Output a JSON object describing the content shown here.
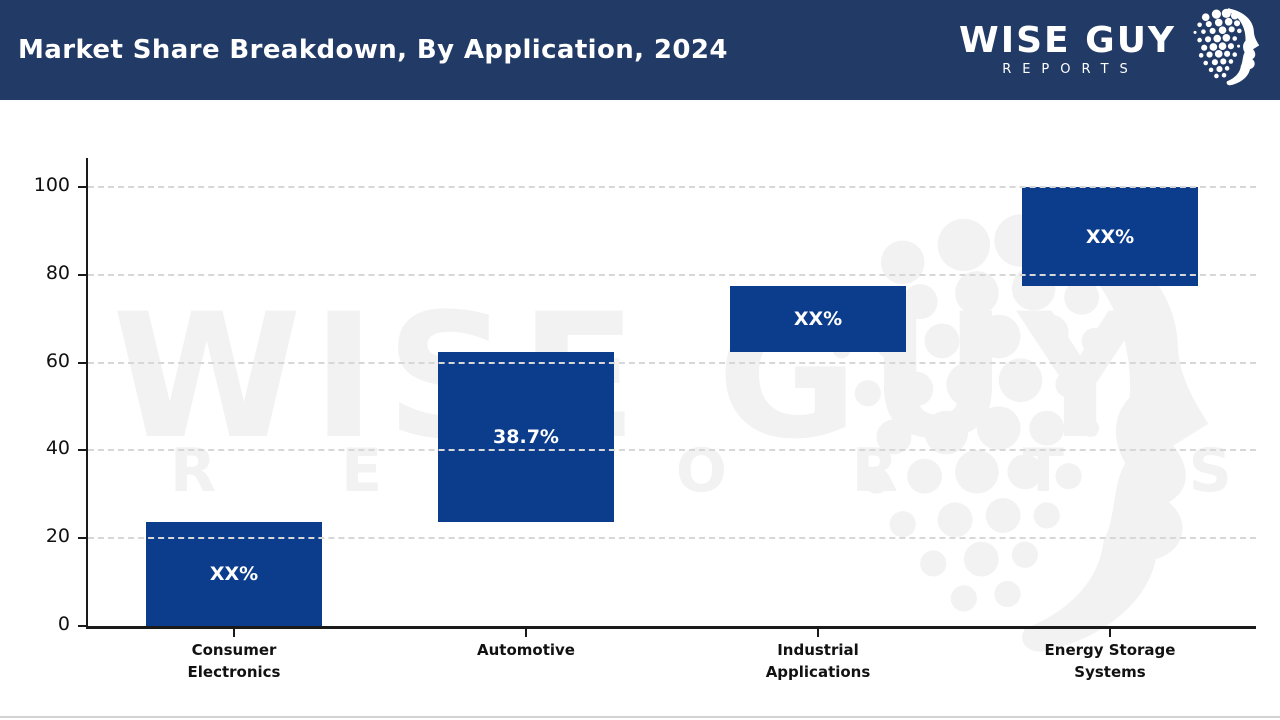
{
  "header": {
    "title": "Market Share Breakdown, By Application, 2024",
    "logo": {
      "line1": "WISE GUY",
      "line2": "REPORTS"
    }
  },
  "watermark": {
    "line1": "WISE GUY",
    "line2": "R E P O R T S"
  },
  "chart_data": {
    "type": "bar",
    "subtype": "waterfall-stacked",
    "title": "Market Share Breakdown, By Application, 2024",
    "categories": [
      "Consumer\nElectronics",
      "Automotive",
      "Industrial\nApplications",
      "Energy Storage\nSystems"
    ],
    "values": [
      23.7,
      38.7,
      15.0,
      22.6
    ],
    "cumulative_start": [
      0,
      23.7,
      62.4,
      77.4
    ],
    "bar_labels": [
      "XX%",
      "38.7%",
      "XX%",
      "XX%"
    ],
    "xlabel": "",
    "ylabel": "",
    "ylim": [
      0,
      100
    ],
    "yticks": [
      0,
      20,
      40,
      60,
      80,
      100
    ],
    "grid": "horizontal-dashed",
    "legend": "none",
    "bar_color": "#0c3d8d",
    "bar_label_color": "#ffffff",
    "axis_color": "#1a1a1a",
    "gridline_color": "#d7d7d7"
  }
}
